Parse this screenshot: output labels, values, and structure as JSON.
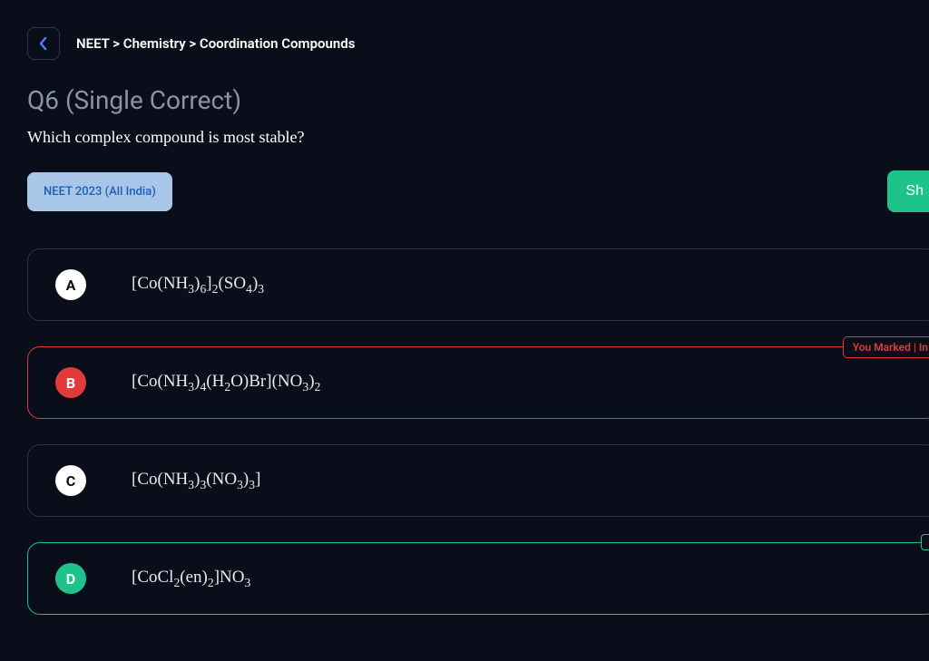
{
  "breadcrumb": "NEET > Chemistry > Coordination Compounds",
  "question": {
    "number": "Q6 (Single Correct)",
    "text": "Which complex compound is most stable?",
    "exam_tag": "NEET 2023 (All India)"
  },
  "share_button": "Sh",
  "marked_badge": "You Marked | In",
  "options": {
    "a": {
      "letter": "A",
      "formula": "[Co(NH<sub>3</sub>)<sub>6</sub>]<sub>2</sub>(SO<sub>4</sub>)<sub>3</sub>",
      "state": "default"
    },
    "b": {
      "letter": "B",
      "formula": "[Co(NH<sub>3</sub>)<sub>4</sub>(H<sub>2</sub>O)Br](NO<sub>3</sub>)<sub>2</sub>",
      "state": "incorrect"
    },
    "c": {
      "letter": "C",
      "formula": "[Co(NH<sub>3</sub>)<sub>3</sub>(NO<sub>3</sub>)<sub>3</sub>]",
      "state": "default"
    },
    "d": {
      "letter": "D",
      "formula": "[CoCl<sub>2</sub>(en)<sub>2</sub>]NO<sub>3</sub>",
      "state": "correct"
    }
  },
  "colors": {
    "background": "#0a0e1a",
    "border_default": "#2a3550",
    "incorrect": "#e03a3a",
    "correct": "#1ec28b",
    "tag_bg": "#a8c7e8",
    "tag_text": "#1a5fb4",
    "title_muted": "#8a93a8"
  }
}
